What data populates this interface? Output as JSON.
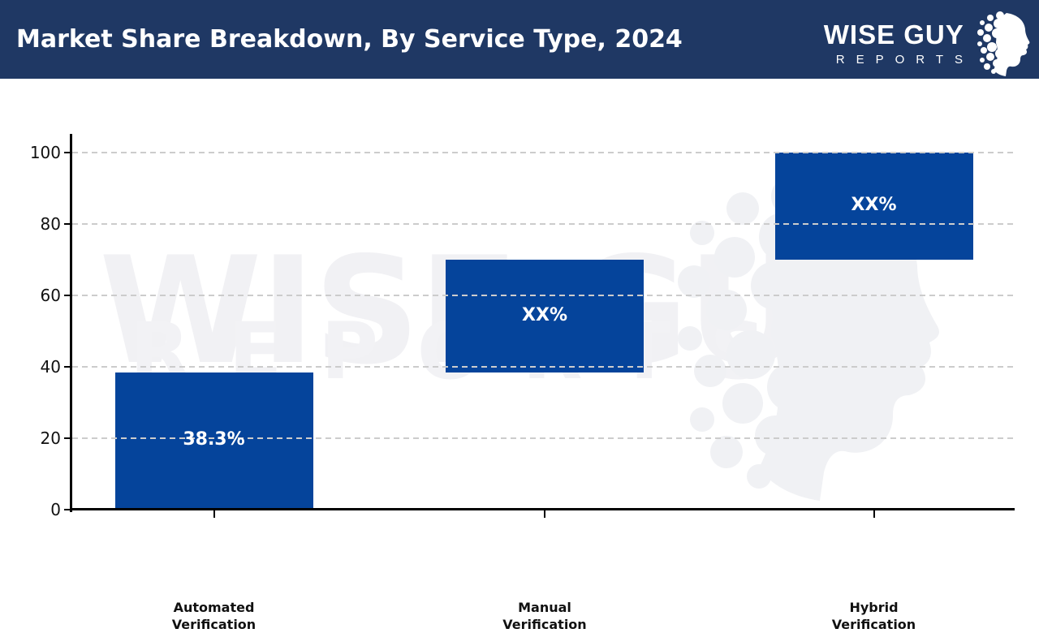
{
  "header": {
    "title": "Market Share Breakdown, By Service Type, 2024",
    "logo": {
      "brand_line1": "WISE GUY",
      "brand_line2": "REPORTS",
      "icon": "wiseguy-face-icon"
    }
  },
  "watermark": {
    "line1": "WISE GUY",
    "line2": "REPORTS"
  },
  "chart_data": {
    "type": "bar",
    "variant": "waterfall-stacked-percent",
    "title": "Market Share Breakdown, By Service Type, 2024",
    "categories": [
      "Automated Verification",
      "Manual Verification",
      "Hybrid Verification"
    ],
    "category_label_lines": [
      [
        "Automated",
        "Verification"
      ],
      [
        "Manual",
        "Verification"
      ],
      [
        "Hybrid",
        "Verification"
      ]
    ],
    "segments": [
      {
        "category": "Automated Verification",
        "start": 0,
        "end": 38.3,
        "label": "38.3%"
      },
      {
        "category": "Manual Verification",
        "start": 38.3,
        "end": 70,
        "label": "XX%"
      },
      {
        "category": "Hybrid Verification",
        "start": 70,
        "end": 100,
        "label": "XX%"
      }
    ],
    "xlabel": "",
    "ylabel": "",
    "ylim": [
      0,
      100
    ],
    "yticks": [
      0,
      20,
      40,
      60,
      80,
      100
    ],
    "grid": {
      "horizontal": true,
      "style": "dashed",
      "color": "#cccccc"
    },
    "legend": null,
    "bar_color": "#05449b",
    "bar_label_color": "#ffffff"
  },
  "colors": {
    "header_bg": "#1f3864",
    "bar": "#05449b",
    "axis": "#000000",
    "grid": "#cccccc",
    "watermark": "#f1f1f4",
    "title_text": "#ffffff"
  }
}
